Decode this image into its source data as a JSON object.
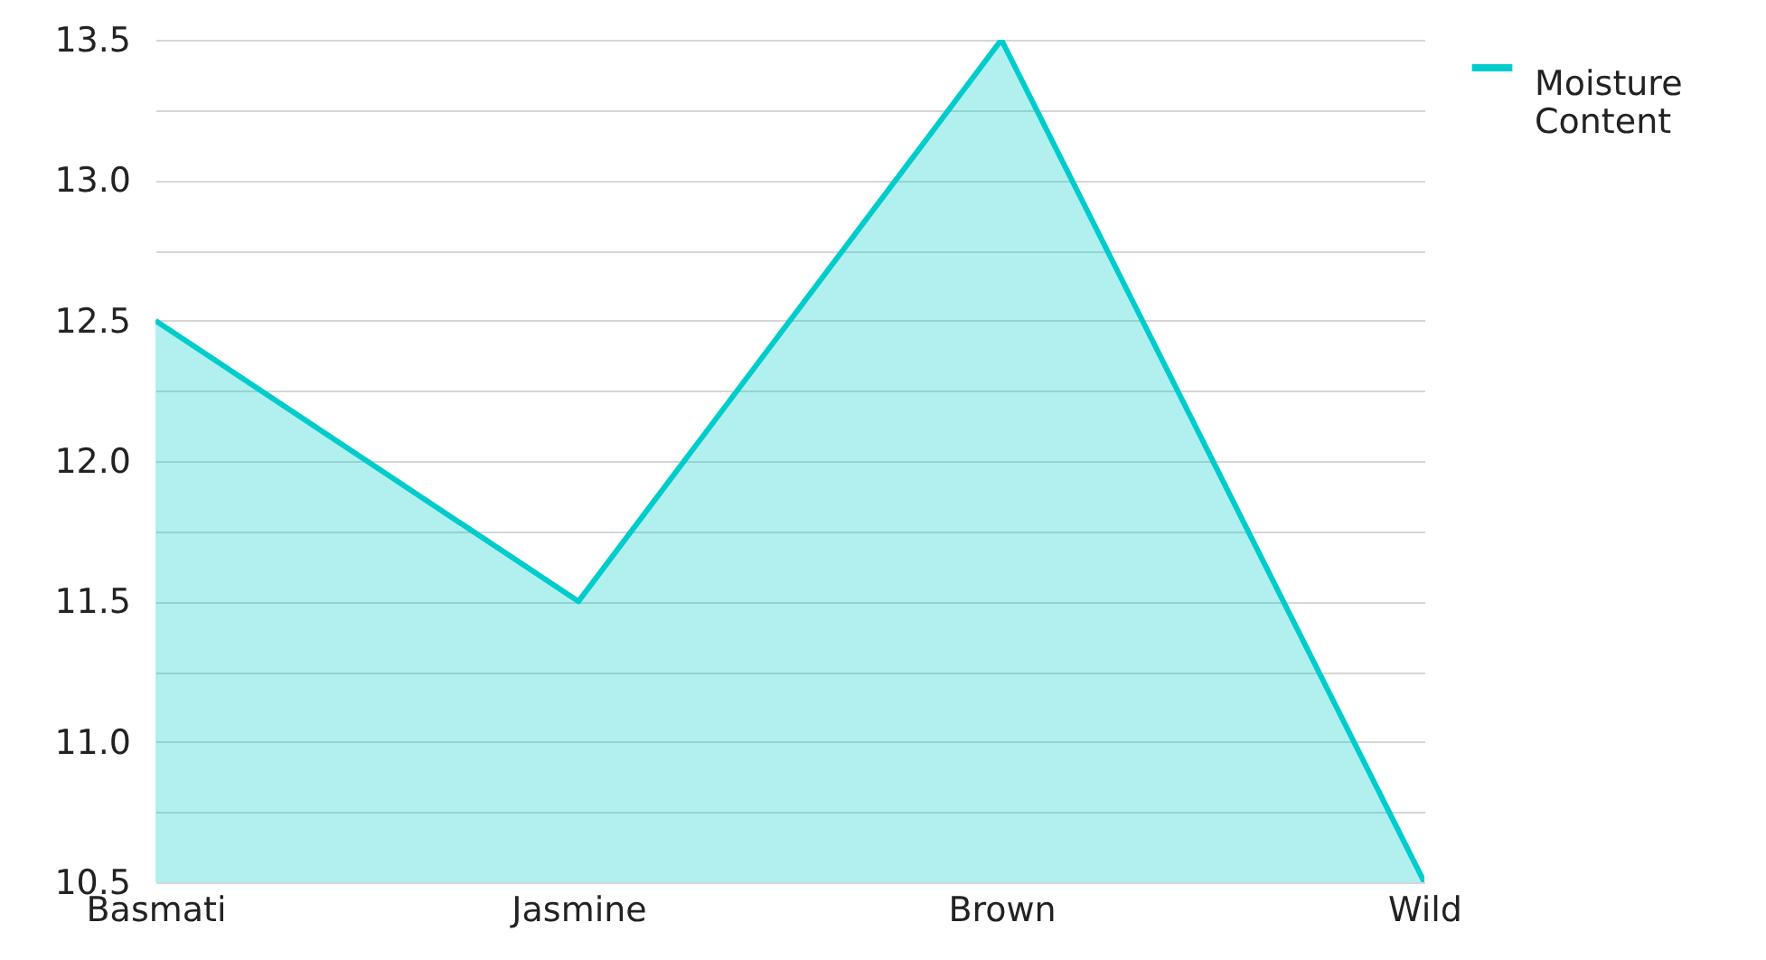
{
  "chart_data": {
    "type": "area",
    "categories": [
      "Basmati",
      "Jasmine",
      "Brown",
      "Wild"
    ],
    "series": [
      {
        "name": "Moisture Content",
        "color": "#00cccc",
        "values": [
          12.5,
          11.5,
          13.5,
          10.5
        ]
      }
    ],
    "ylim": [
      10.5,
      13.5
    ],
    "yticks": [
      10.5,
      {
        "value": 10.75,
        "label": null
      },
      {
        "value": 11,
        "label": "11.0"
      },
      {
        "value": 11.25,
        "label": null
      },
      11.5,
      {
        "value": 11.75,
        "label": null
      },
      {
        "value": 12,
        "label": "12.0"
      },
      {
        "value": 12.25,
        "label": null
      },
      12.5,
      {
        "value": 12.75,
        "label": null
      },
      {
        "value": 13,
        "label": "13.0"
      },
      {
        "value": 13.25,
        "label": null
      },
      13.5
    ],
    "grid": "y",
    "legend": "top right"
  }
}
